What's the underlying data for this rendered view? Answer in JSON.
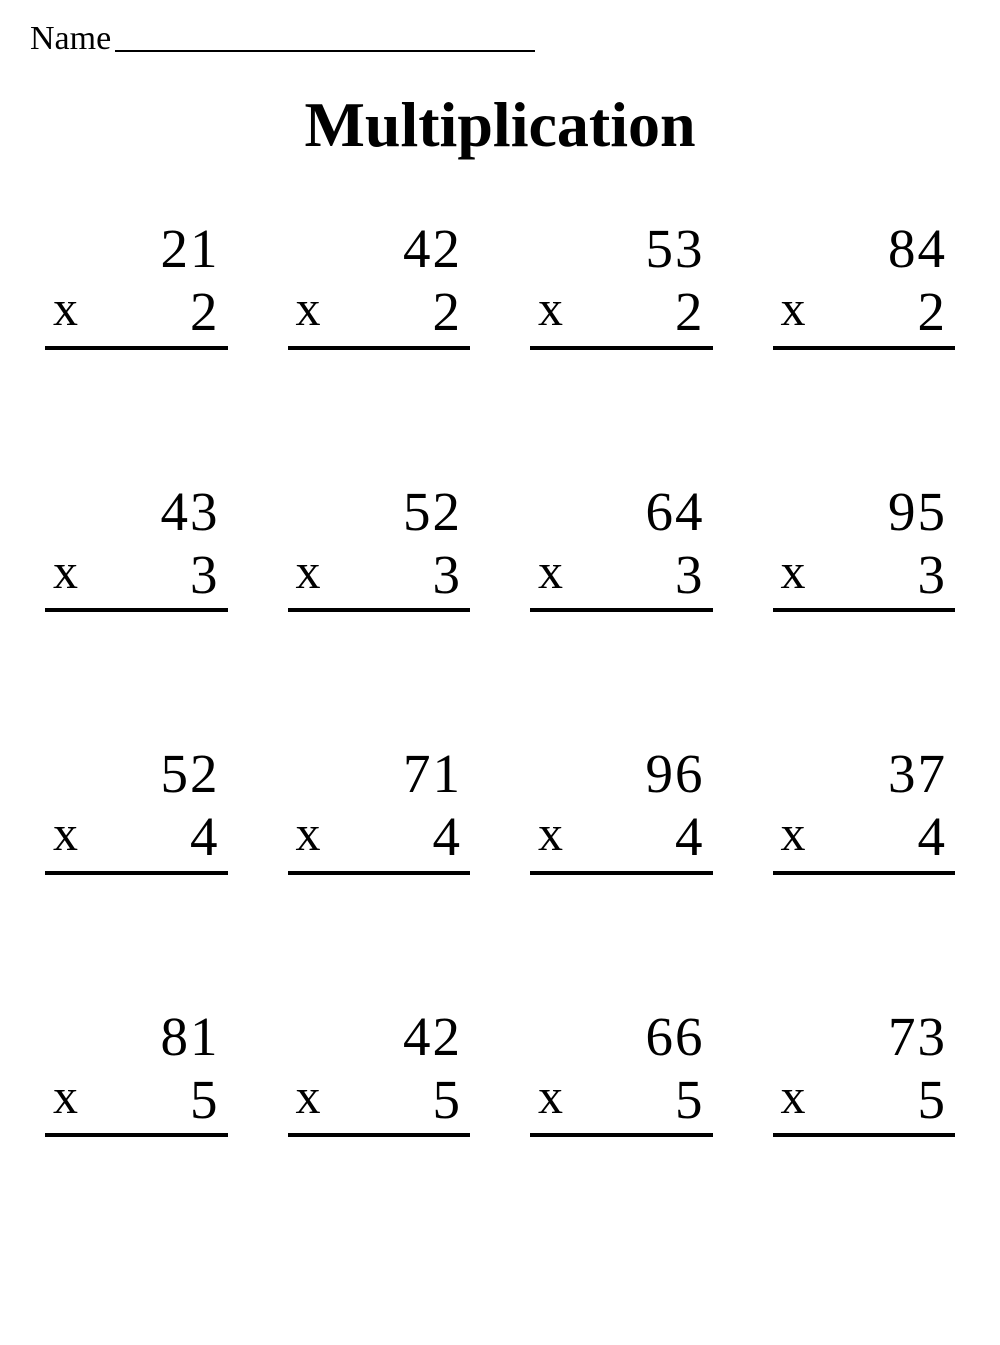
{
  "header": {
    "name_label": "Name",
    "title": "Multiplication"
  },
  "worksheet": {
    "type": "table",
    "columns": 4,
    "rows": 4,
    "background_color": "#ffffff",
    "text_color": "#000000",
    "font_family": "Comic Sans MS",
    "title_fontsize": 64,
    "name_fontsize": 34,
    "problem_fontsize": 55,
    "underline_color": "#000000",
    "underline_width": 4,
    "multiplication_sign": "x",
    "problems": [
      {
        "multiplicand": "21",
        "multiplier": "2"
      },
      {
        "multiplicand": "42",
        "multiplier": "2"
      },
      {
        "multiplicand": "53",
        "multiplier": "2"
      },
      {
        "multiplicand": "84",
        "multiplier": "2"
      },
      {
        "multiplicand": "43",
        "multiplier": "3"
      },
      {
        "multiplicand": "52",
        "multiplier": "3"
      },
      {
        "multiplicand": "64",
        "multiplier": "3"
      },
      {
        "multiplicand": "95",
        "multiplier": "3"
      },
      {
        "multiplicand": "52",
        "multiplier": "4"
      },
      {
        "multiplicand": "71",
        "multiplier": "4"
      },
      {
        "multiplicand": "96",
        "multiplier": "4"
      },
      {
        "multiplicand": "37",
        "multiplier": "4"
      },
      {
        "multiplicand": "81",
        "multiplier": "5"
      },
      {
        "multiplicand": "42",
        "multiplier": "5"
      },
      {
        "multiplicand": "66",
        "multiplier": "5"
      },
      {
        "multiplicand": "73",
        "multiplier": "5"
      }
    ]
  }
}
